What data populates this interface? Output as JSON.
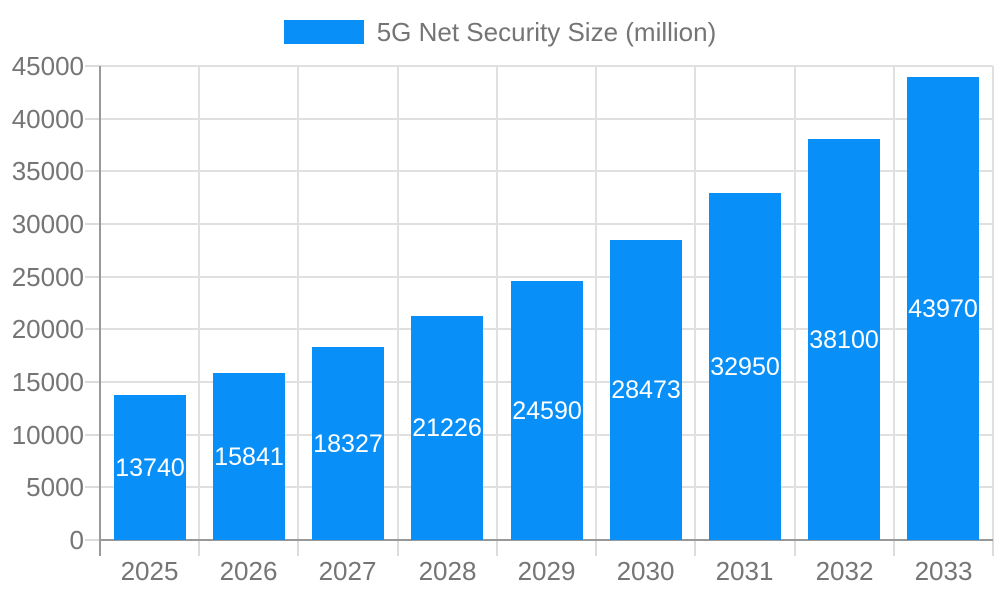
{
  "chart_data": {
    "type": "bar",
    "title": "5G Net Security Size (million)",
    "categories": [
      "2025",
      "2026",
      "2027",
      "2028",
      "2029",
      "2030",
      "2031",
      "2032",
      "2033"
    ],
    "values": [
      13740,
      15841,
      18327,
      21226,
      24590,
      28473,
      32950,
      38100,
      43970
    ],
    "series": [
      {
        "name": "5G Net Security Size (million)",
        "values": [
          13740,
          15841,
          18327,
          21226,
          24590,
          28473,
          32950,
          38100,
          43970
        ]
      }
    ],
    "xlabel": "",
    "ylabel": "",
    "ylim": [
      0,
      45000
    ],
    "ytick_step": 5000,
    "ytick_labels": [
      "0",
      "5000",
      "10000",
      "15000",
      "20000",
      "25000",
      "30000",
      "35000",
      "40000",
      "45000"
    ],
    "grid": true,
    "legend_position": "top-center",
    "value_labels": "inside-center-white",
    "colors": {
      "bar": "#0990f8",
      "axis": "#999999",
      "grid": "#e0e0e0",
      "tick": "#dcdcdc",
      "label": "#757575",
      "value_label": "#ffffff",
      "background": "#ffffff"
    }
  }
}
